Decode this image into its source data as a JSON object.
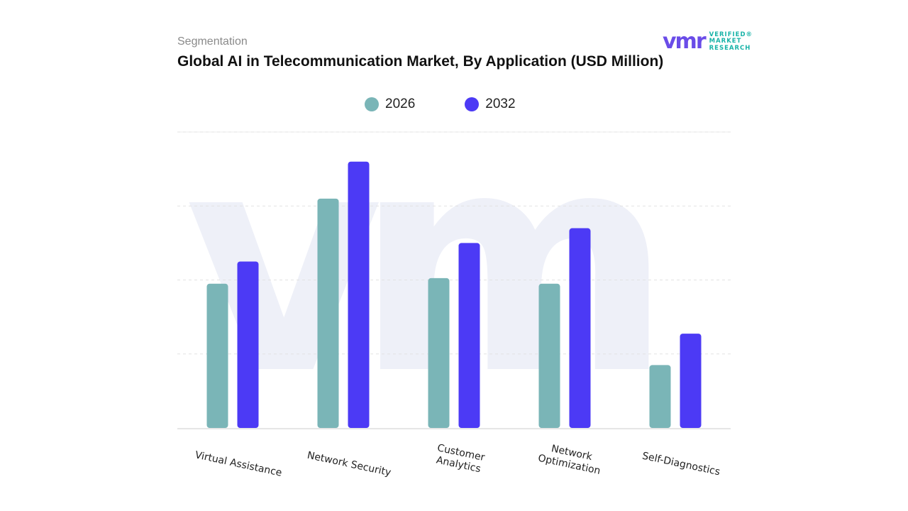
{
  "header": {
    "subtitle": "Segmentation",
    "title": "Global AI in Telecommunication Market, By Application (USD Million)"
  },
  "logo": {
    "mark": "vmr",
    "line1": "VERIFIED®",
    "line2": "MARKET",
    "line3": "RESEARCH"
  },
  "chart_data": {
    "type": "bar",
    "title": "Global AI in Telecommunication Market, By Application (USD Million)",
    "categories": [
      "Virtual Assistance",
      "Network Security",
      "Customer\nAnalytics",
      "Network\nOptimization",
      "Self-Diagnostics"
    ],
    "series": [
      {
        "name": "2026",
        "color": "#7ab5b7",
        "values": [
          39,
          62,
          40.5,
          39,
          17
        ]
      },
      {
        "name": "2032",
        "color": "#4c3af5",
        "values": [
          45,
          72,
          50,
          54,
          25.5
        ]
      }
    ],
    "ylim": [
      0,
      80
    ],
    "xlabel": "",
    "ylabel": "",
    "grid": true,
    "legend": "top-center"
  }
}
